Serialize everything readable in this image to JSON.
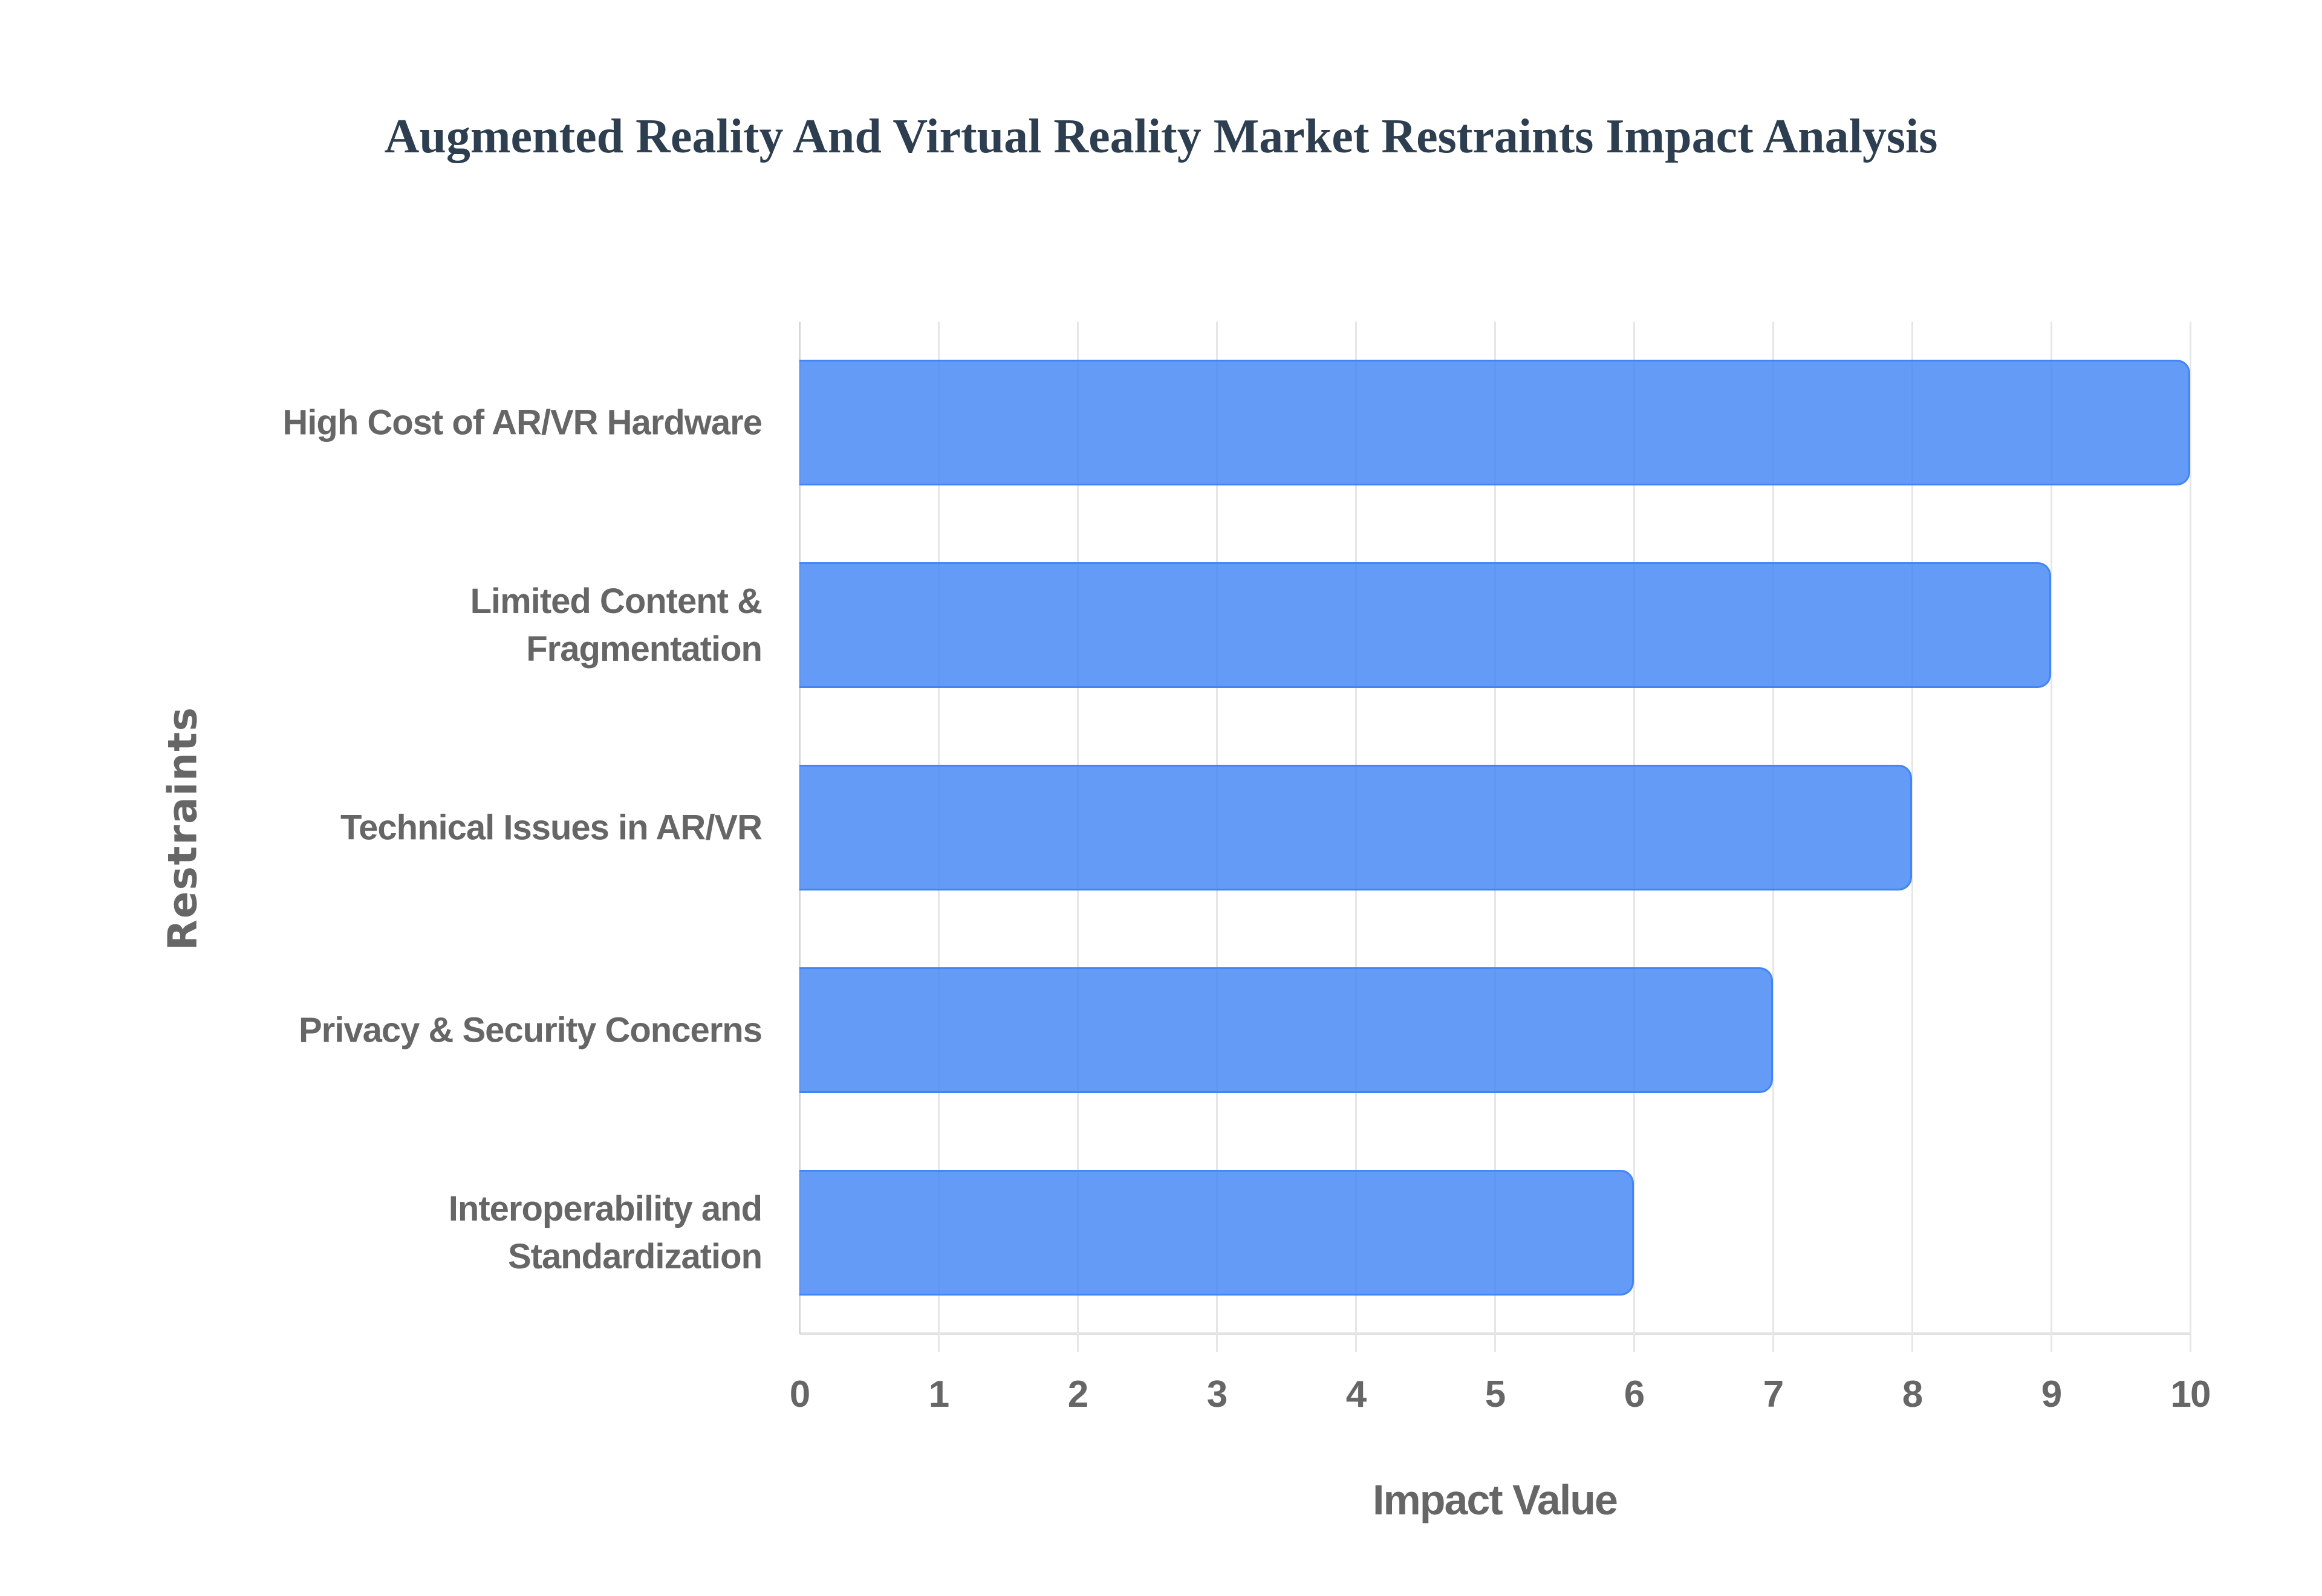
{
  "chart_data": {
    "type": "bar",
    "orientation": "horizontal",
    "title": "Augmented Reality And Virtual Reality Market Restraints Impact Analysis",
    "xlabel": "Impact Value",
    "ylabel": "Restraints",
    "categories": [
      "High Cost of AR/VR Hardware",
      "Limited Content & Fragmentation",
      "Technical Issues in AR/VR",
      "Privacy & Security Concerns",
      "Interoperability and Standardization"
    ],
    "values": [
      10,
      9,
      8,
      7,
      6
    ],
    "xlim": [
      0,
      10
    ],
    "xticks": [
      0,
      1,
      2,
      3,
      4,
      5,
      6,
      7,
      8,
      9,
      10
    ],
    "grid": true,
    "legend": false,
    "bar_color": "#4285f4"
  },
  "title": "Augmented Reality And Virtual Reality Market Restraints Impact Analysis",
  "axes": {
    "x_title": "Impact Value",
    "y_title": "Restraints",
    "x_ticks": [
      "0",
      "1",
      "2",
      "3",
      "4",
      "5",
      "6",
      "7",
      "8",
      "9",
      "10"
    ]
  },
  "categories": [
    {
      "lines": [
        "High Cost of AR/VR Hardware"
      ],
      "value": 10
    },
    {
      "lines": [
        "Limited Content &",
        "Fragmentation"
      ],
      "value": 9
    },
    {
      "lines": [
        "Technical Issues in AR/VR"
      ],
      "value": 8
    },
    {
      "lines": [
        "Privacy & Security Concerns"
      ],
      "value": 7
    },
    {
      "lines": [
        "Interoperability and",
        "Standardization"
      ],
      "value": 6
    }
  ],
  "colors": {
    "bar_fill": "#6199f5",
    "bar_border": "#4285f4",
    "title": "#2c3e50",
    "axis_text": "#666666",
    "grid": "#e6e6e6"
  }
}
